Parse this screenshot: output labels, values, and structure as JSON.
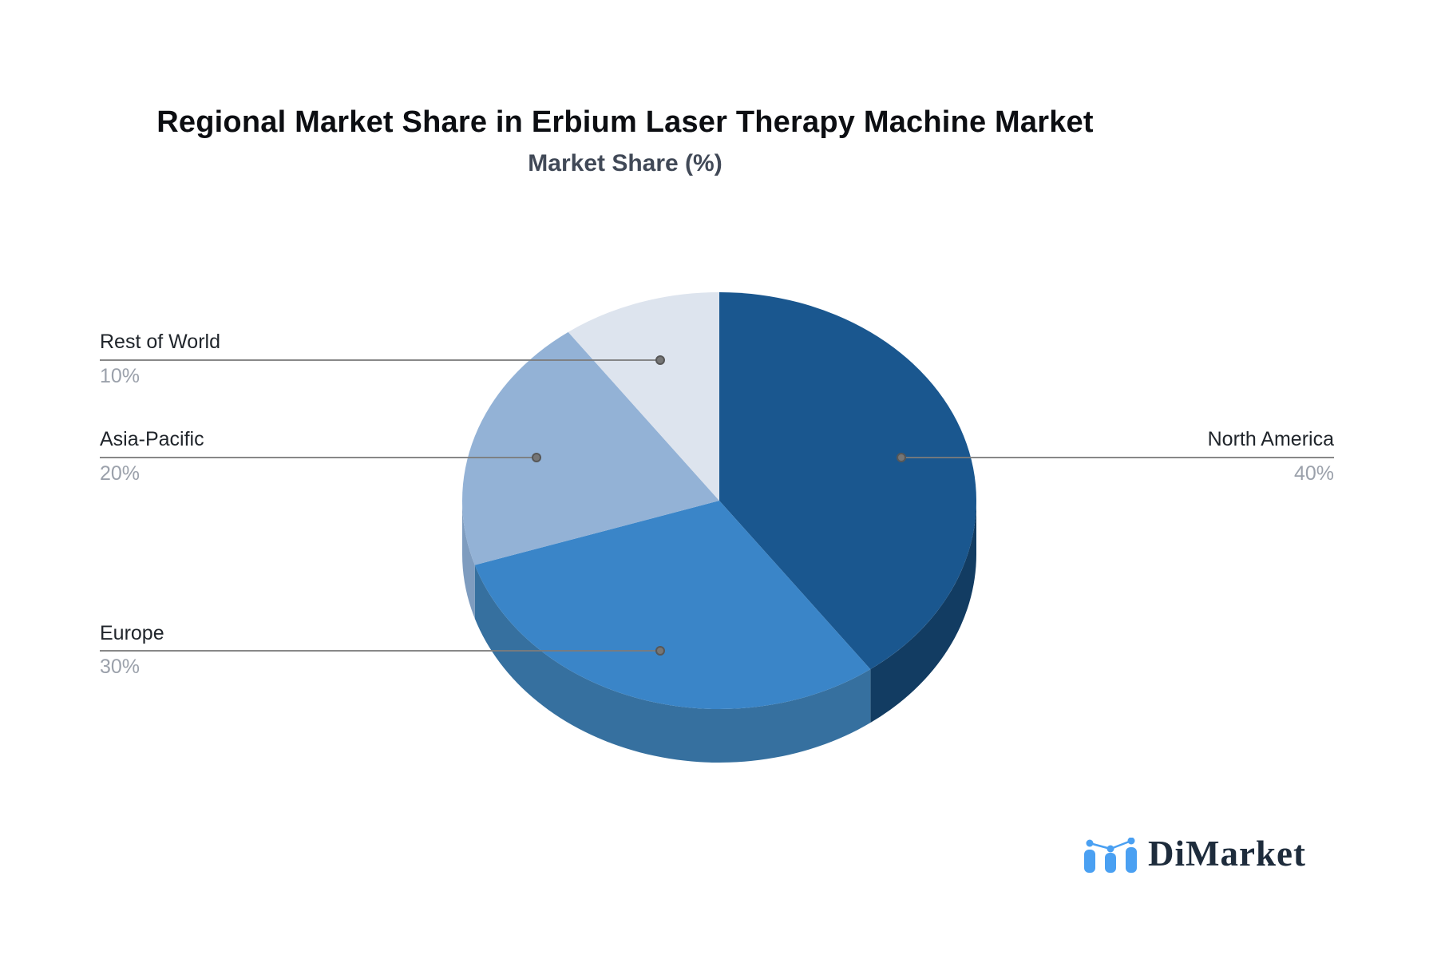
{
  "header": {
    "title": "Regional Market Share in Erbium Laser Therapy Machine Market",
    "subtitle": "Market Share (%)"
  },
  "chart_data": {
    "type": "pie",
    "style": "3d",
    "title": "Regional Market Share in Erbium Laser Therapy Machine Market",
    "subtitle": "Market Share (%)",
    "unit": "%",
    "direction": "clockwise",
    "start_angle_deg_from_top": 0,
    "labels": [
      "North America",
      "Europe",
      "Asia-Pacific",
      "Rest of World"
    ],
    "values": [
      40,
      30,
      20,
      10
    ],
    "colors": [
      "#1a578f",
      "#3a85c8",
      "#93b2d6",
      "#dde4ee"
    ],
    "side_colors": [
      "#123c62",
      "#36709f",
      "#7e9cbf",
      "#c9d3e2"
    ],
    "legend_position": "callout-labels"
  },
  "callouts": [
    {
      "label": "North America",
      "value": "40%"
    },
    {
      "label": "Europe",
      "value": "30%"
    },
    {
      "label": "Asia-Pacific",
      "value": "20%"
    },
    {
      "label": "Rest of World",
      "value": "10%"
    }
  ],
  "branding": {
    "name": "DiMarket",
    "icon": "bar-chart-trend-icon",
    "icon_color": "#4aa0f2",
    "text_color": "#1e2c3c"
  },
  "colors": {
    "title": "#0c0e12",
    "subtitle": "#414957",
    "label": "#20252b",
    "value": "#9ba1ab",
    "leader_line": "#7c7c7c",
    "dot": "#767676",
    "dot_ring": "#575757",
    "background": "#ffffff"
  }
}
